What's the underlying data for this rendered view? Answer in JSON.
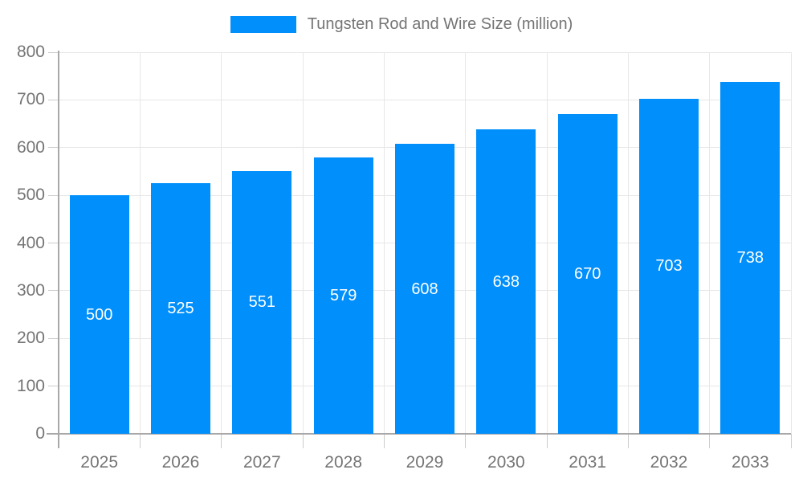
{
  "chart_data": {
    "type": "bar",
    "title": "Tungsten Rod and Wire Size (million)",
    "legend_label": "Tungsten Rod and Wire Size (million)",
    "categories": [
      "2025",
      "2026",
      "2027",
      "2028",
      "2029",
      "2030",
      "2031",
      "2032",
      "2033"
    ],
    "values": [
      500,
      525,
      551,
      579,
      608,
      638,
      670,
      703,
      738
    ],
    "bar_value_labels": [
      "500",
      "525",
      "551",
      "579",
      "608",
      "638",
      "670",
      "703",
      "738"
    ],
    "xlabel": "",
    "ylabel": "",
    "ylim": [
      0,
      800
    ],
    "ytick_step": 100,
    "yticks": [
      0,
      100,
      200,
      300,
      400,
      500,
      600,
      700,
      800
    ],
    "grid": true,
    "legend_position": "top-center",
    "colors": {
      "bar": "#008FFB",
      "bar_label_text": "#ffffff",
      "axis_line": "#a8a8a8",
      "gridline": "#e7e7e7",
      "axis_tick": "#cccccc",
      "tick_text": "#757575",
      "legend_text": "#757575",
      "background": "#ffffff"
    }
  }
}
